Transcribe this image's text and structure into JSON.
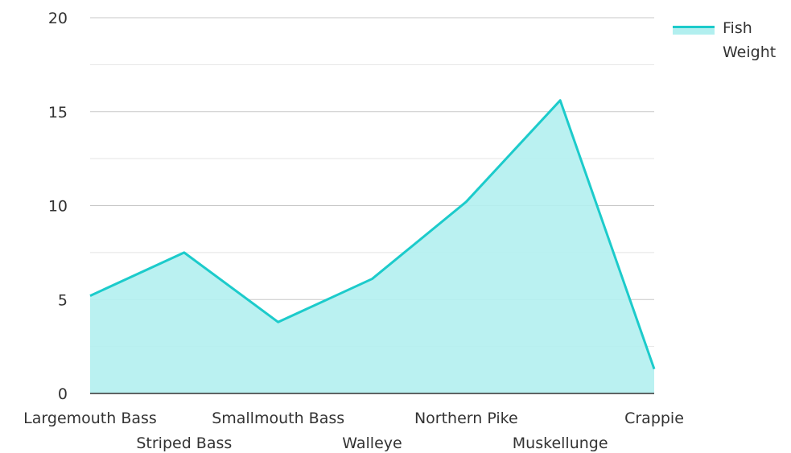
{
  "chart_data": {
    "type": "area",
    "categories": [
      "Largemouth Bass",
      "Striped Bass",
      "Smallmouth Bass",
      "Walleye",
      "Northern Pike",
      "Muskellunge",
      "Crappie"
    ],
    "series": [
      {
        "name": "Fish Weight",
        "values": [
          5.2,
          7.5,
          3.8,
          6.1,
          10.2,
          15.6,
          1.3
        ]
      }
    ],
    "ylim": [
      0,
      20
    ],
    "y_ticks": [
      "0",
      "5",
      "10",
      "15",
      "20"
    ],
    "grid": true,
    "legend": "top-right",
    "colors": {
      "line": "#1ccbcb",
      "fill": "#b2efef",
      "grid_major": "#c8c8c8",
      "grid_minor": "#e4e4e4",
      "axis": "#333333"
    }
  }
}
